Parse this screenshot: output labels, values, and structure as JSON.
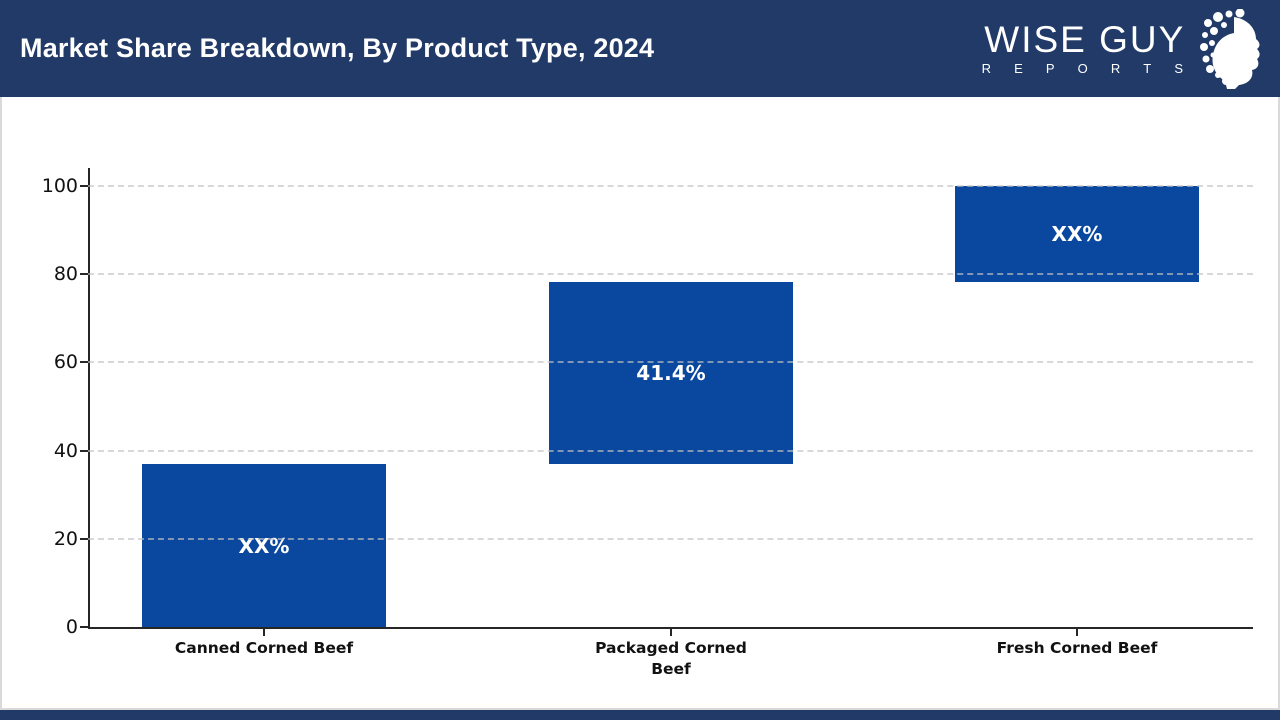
{
  "header": {
    "title": "Market Share Breakdown, By Product Type, 2024",
    "logo": {
      "line1": "WISE GUY",
      "line2": "REPORTS"
    }
  },
  "watermark": {
    "line1": "WISE GUY",
    "line2": "REPORTS"
  },
  "chart_data": {
    "type": "bar",
    "subtype": "floating-waterfall",
    "title": "Market Share Breakdown, By Product Type, 2024",
    "categories": [
      "Canned Corned Beef",
      "Packaged Corned Beef",
      "Fresh Corned Beef"
    ],
    "segments": [
      {
        "category": "Canned Corned Beef",
        "start": 0,
        "end": 36.9,
        "label": "XX%"
      },
      {
        "category": "Packaged Corned Beef",
        "start": 36.9,
        "end": 78.3,
        "label": "41.4%"
      },
      {
        "category": "Fresh Corned Beef",
        "start": 78.3,
        "end": 100,
        "label": "XX%"
      }
    ],
    "yticks": [
      0,
      20,
      40,
      60,
      80,
      100
    ],
    "ylim": [
      0,
      100
    ],
    "xlabel": "",
    "ylabel": "",
    "grid": true,
    "gridstyle": "dashed",
    "legend": false
  },
  "colors": {
    "header_bg": "#213A68",
    "footer_bg": "#213A68",
    "bar_fill": "#0A479E",
    "bar_label": "#ffffff",
    "axis": "#262626",
    "grid": "#c8c8c8",
    "watermark": "#f3f3f3"
  }
}
